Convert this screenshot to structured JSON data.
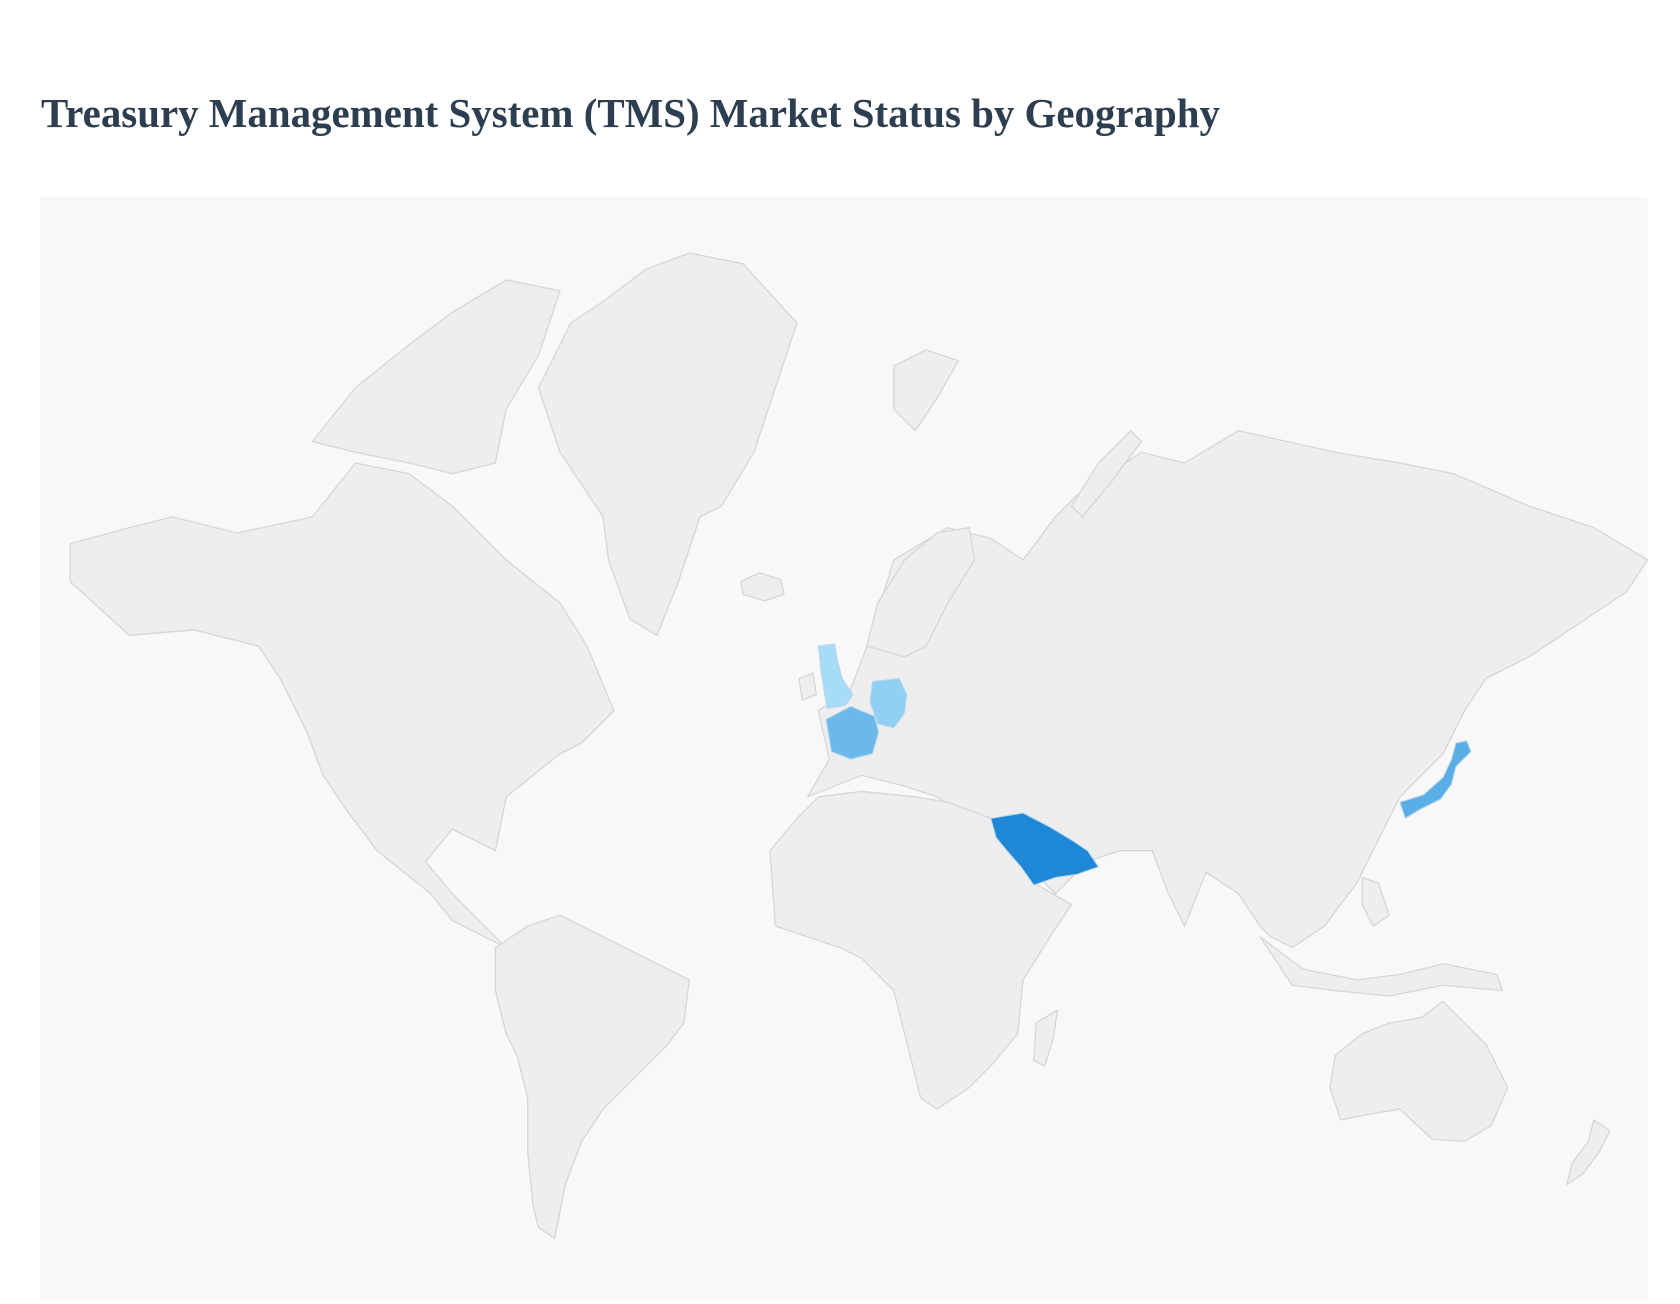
{
  "header": {
    "title": "Treasury Management System (TMS) Market Status by Geography"
  }
}
